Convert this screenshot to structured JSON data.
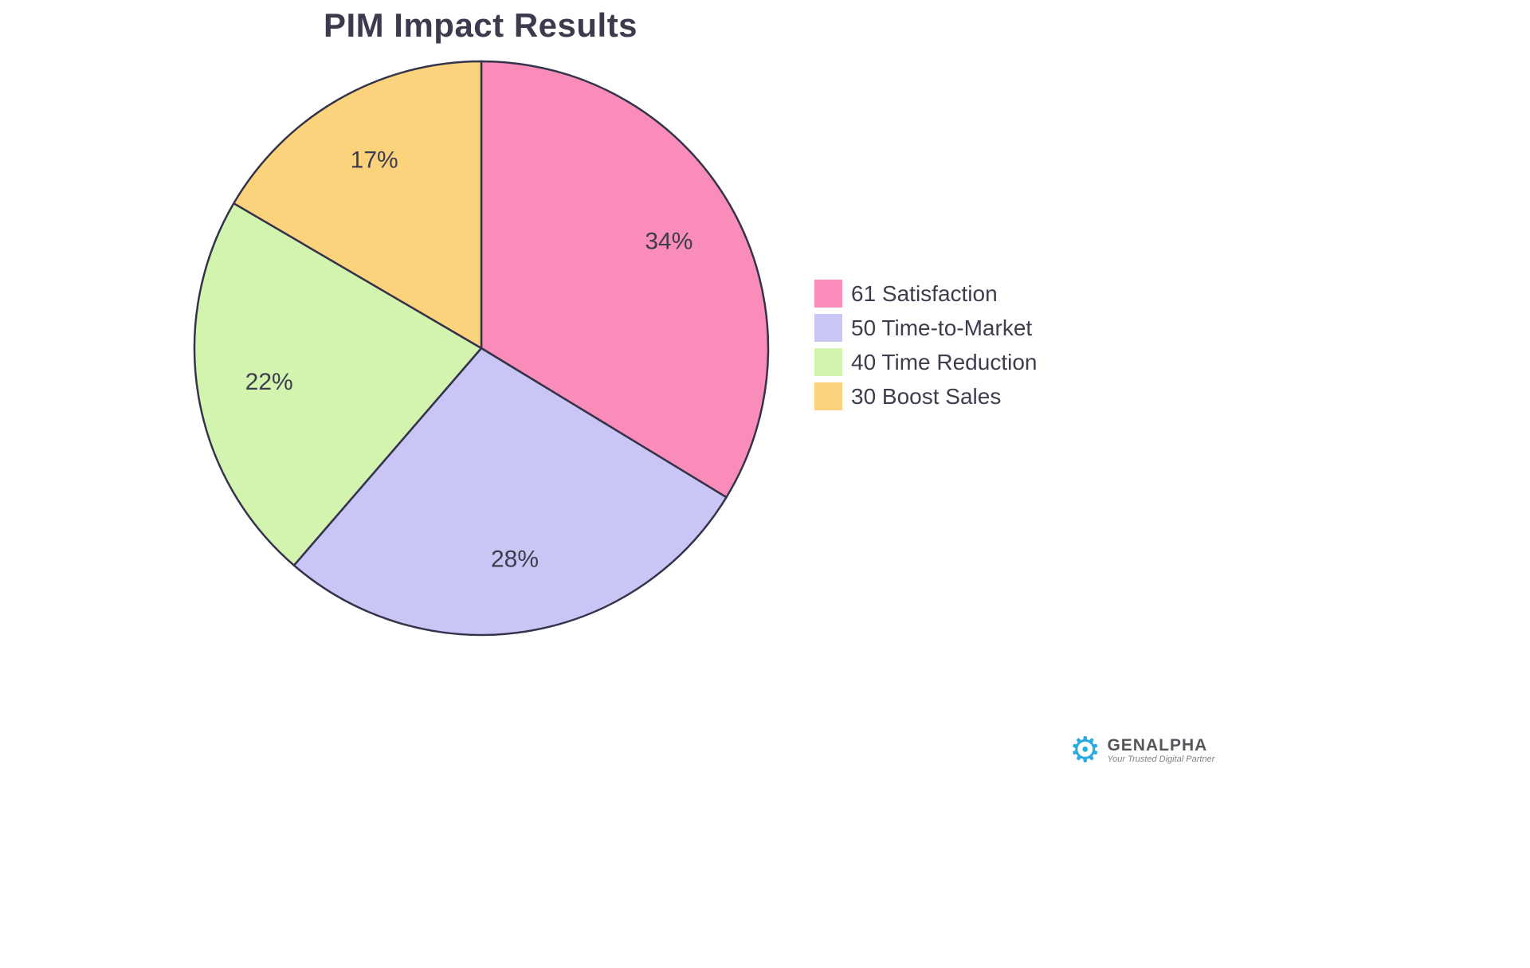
{
  "title": "PIM Impact Results",
  "chart_data": {
    "type": "pie",
    "title": "PIM Impact Results",
    "start_angle_deg": 0,
    "direction": "clockwise",
    "stroke_color": "#34334b",
    "stroke_width": 2.5,
    "legend_position": "right",
    "slices": [
      {
        "label": "61 Satisfaction",
        "value": 61,
        "percent_label": "34%",
        "color": "#F98CB8"
      },
      {
        "label": "50 Time-to-Market",
        "value": 50,
        "percent_label": "28%",
        "color": "#C9C5F4"
      },
      {
        "label": "40 Time Reduction",
        "value": 40,
        "percent_label": "22%",
        "color": "#D3F4AF"
      },
      {
        "label": "30 Boost Sales",
        "value": 30,
        "percent_label": "17%",
        "color": "#FBD37D"
      }
    ]
  },
  "branding": {
    "name": "GENALPHA",
    "tagline": "Your Trusted Digital Partner",
    "accent_color": "#29ABE2",
    "gear_icon": "⚙"
  }
}
